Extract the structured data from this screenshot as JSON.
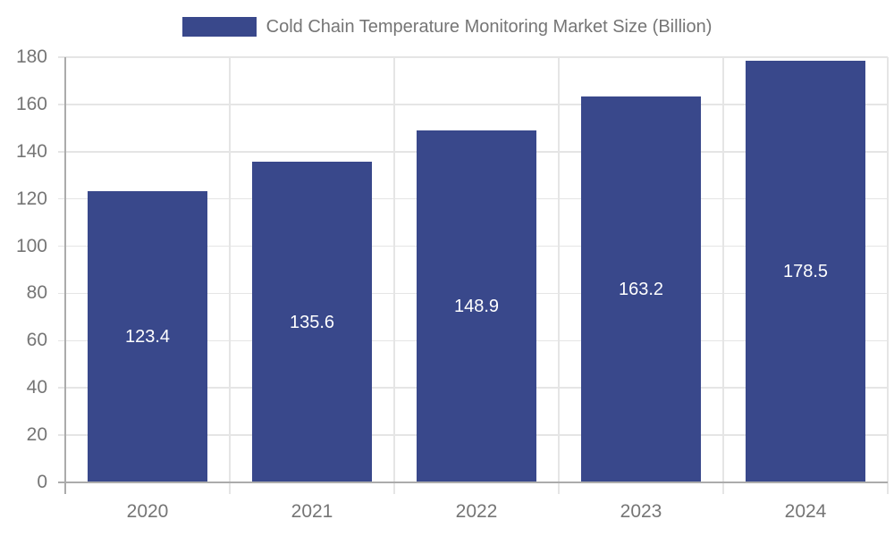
{
  "chart_data": {
    "type": "bar",
    "title": "Cold Chain Temperature Monitoring Market Size (Billion)",
    "categories": [
      "2020",
      "2021",
      "2022",
      "2023",
      "2024"
    ],
    "values": [
      123.4,
      135.6,
      148.9,
      163.2,
      178.5
    ],
    "value_labels": [
      "123.4",
      "135.6",
      "148.9",
      "163.2",
      "178.5"
    ],
    "xlabel": "",
    "ylabel": "",
    "ylim": [
      0,
      180
    ],
    "y_ticks": [
      0,
      20,
      40,
      60,
      80,
      100,
      120,
      140,
      160,
      180
    ],
    "grid": "on",
    "legend_position": "top",
    "colors": {
      "bar": "#39488B",
      "grid": "#E5E5E5",
      "axis": "#ABABAB",
      "tick_text": "#757575",
      "value_text": "#FFFFFF",
      "background": "#FFFFFF"
    }
  }
}
